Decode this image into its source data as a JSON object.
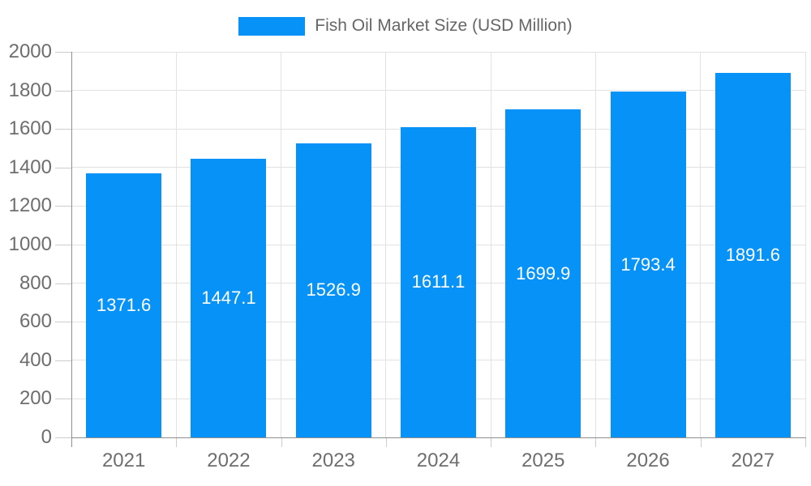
{
  "legend": {
    "label": "Fish Oil Market Size (USD Million)"
  },
  "chart_data": {
    "type": "bar",
    "title": "Fish Oil Market Size (USD Million)",
    "categories": [
      "2021",
      "2022",
      "2023",
      "2024",
      "2025",
      "2026",
      "2027"
    ],
    "values": [
      1371.6,
      1447.1,
      1526.9,
      1611.1,
      1699.9,
      1793.4,
      1891.6
    ],
    "xlabel": "",
    "ylabel": "",
    "ylim": [
      0,
      2000
    ],
    "ytick_step": 200,
    "grid": true,
    "legend_position": "top-center",
    "value_label_position": "inside-center",
    "colors": {
      "bar": "#0792f7",
      "value_label": "#ffffff",
      "axis_line": "#8f8f8f",
      "grid_line": "#e2e2e2",
      "tick_mark": "#cccccc",
      "tick_text": "#6e6e6e",
      "legend_text": "#666666"
    }
  }
}
